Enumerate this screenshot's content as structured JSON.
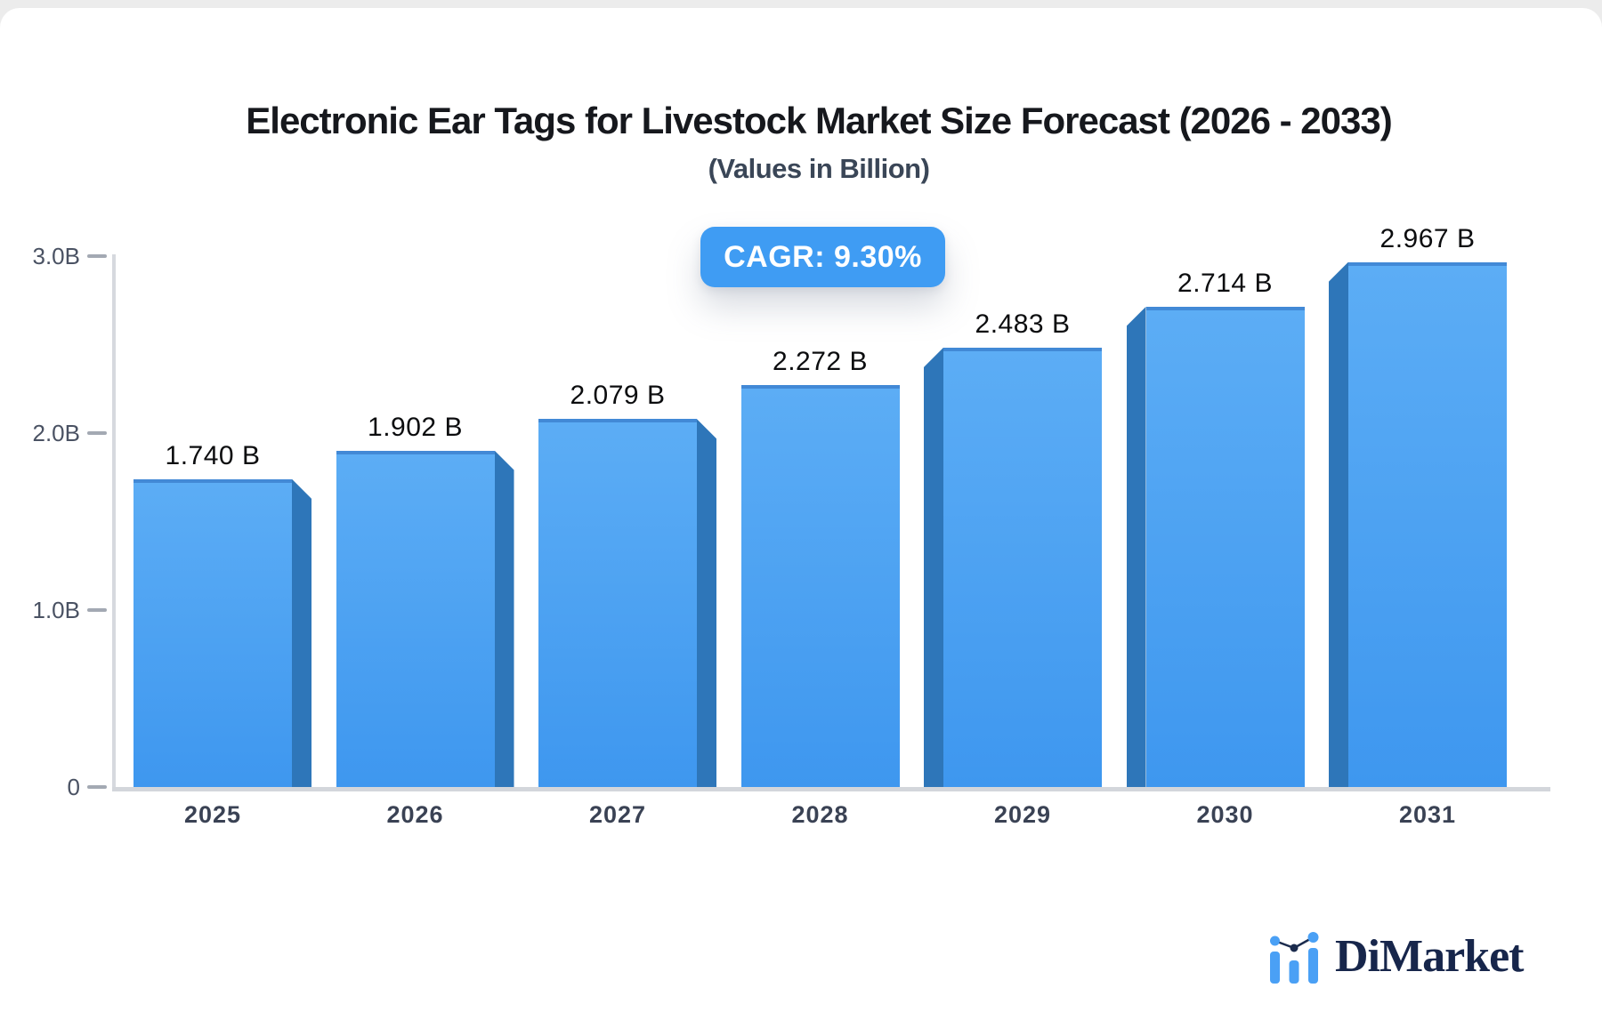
{
  "header": {
    "title": "Electronic Ear Tags for Livestock Market Size Forecast (2026 - 2033)",
    "subtitle": "(Values in Billion)"
  },
  "badge": {
    "label": "CAGR: 9.30%",
    "bg_color": "#3f9cf3"
  },
  "chart_data": {
    "type": "bar",
    "title": "Electronic Ear Tags for Livestock Market Size Forecast (2026 - 2033)",
    "subtitle": "(Values in Billion)",
    "categories": [
      "2025",
      "2026",
      "2027",
      "2028",
      "2029",
      "2030",
      "2031"
    ],
    "values": [
      1.74,
      1.902,
      2.079,
      2.272,
      2.483,
      2.714,
      2.967
    ],
    "value_labels": [
      "1.740 B",
      "1.902 B",
      "2.079 B",
      "2.272 B",
      "2.483 B",
      "2.714 B",
      "2.967 B"
    ],
    "cagr": "9.30%",
    "ylim": [
      0,
      3.0
    ],
    "y_ticks": [
      {
        "label": "3.0B",
        "value": 3.0
      },
      {
        "label": "2.0B",
        "value": 2.0
      },
      {
        "label": "1.0B",
        "value": 1.0
      },
      {
        "label": "0",
        "value": 0.0
      }
    ],
    "grid": false,
    "legend": "none",
    "colors": {
      "bar_face_top": "#5cadf5",
      "bar_face_bottom": "#3e97ef",
      "bar_top_edge": "#4289d6",
      "bar_side": "#2e76b9",
      "axis": "#d6d9de"
    }
  },
  "logo": {
    "name": "DiMarket",
    "icon": "bar-chart-logo-icon",
    "icon_color": "#4aa0f5",
    "text_color": "#17264b"
  }
}
